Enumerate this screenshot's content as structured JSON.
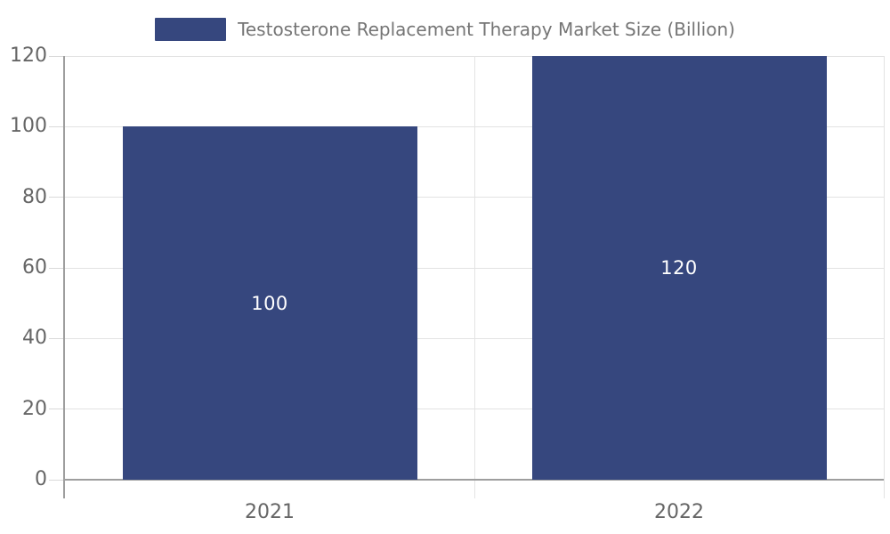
{
  "chart_data": {
    "type": "bar",
    "categories": [
      "2021",
      "2022"
    ],
    "series": [
      {
        "name": "Testosterone Replacement Therapy Market Size (Billion)",
        "values": [
          100,
          120
        ]
      }
    ],
    "title": "",
    "xlabel": "",
    "ylabel": "",
    "ylim": [
      0,
      120
    ],
    "yticks": [
      0,
      20,
      40,
      60,
      80,
      100,
      120
    ],
    "grid": true,
    "legend_position": "top",
    "data_label_position": "inside-center",
    "data_labels": [
      "100",
      "120"
    ],
    "colors": {
      "bar": "#36477e",
      "data_label": "#ffffff",
      "axis_line": "#9e9e9e",
      "gridline": "#e3e3e3",
      "tick": "#d9d9d9",
      "axis_label": "#666666",
      "legend_text": "#757575",
      "background": "#ffffff"
    }
  }
}
